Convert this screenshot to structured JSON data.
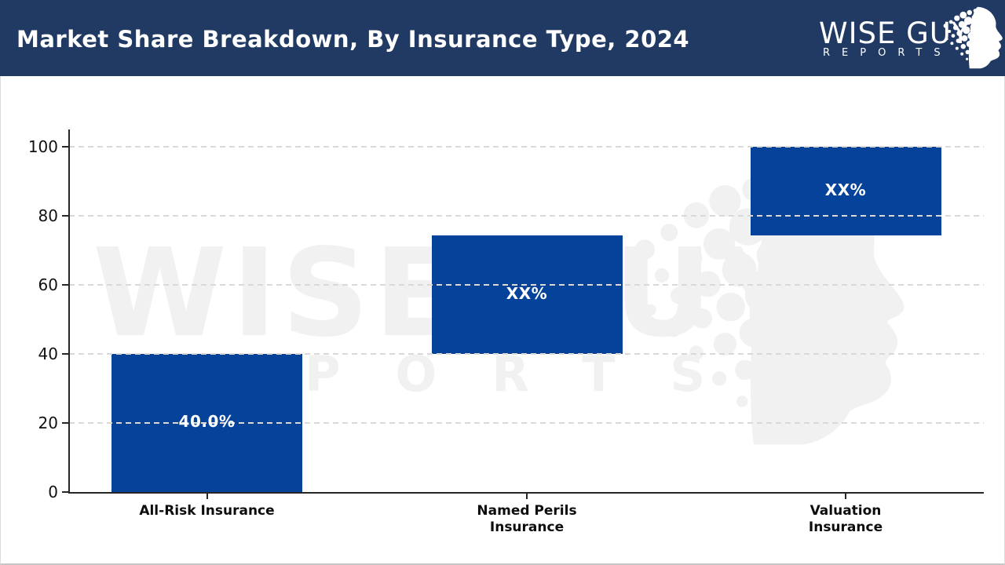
{
  "header": {
    "title": "Market Share Breakdown, By Insurance Type, 2024",
    "background_color": "#203a64",
    "logo": {
      "wordmark": "WISE GUY",
      "subtext": "REPORTS"
    }
  },
  "watermark": {
    "wordmark": "WISE GUY",
    "subtext": "REPORTS"
  },
  "chart_data": {
    "type": "bar",
    "subtype": "floating_stacked_percentage_bars",
    "title": "Market Share Breakdown, By Insurance Type, 2024",
    "categories": [
      "All-Risk Insurance",
      "Named Perils Insurance",
      "Valuation Insurance"
    ],
    "category_lines": [
      [
        "All-Risk Insurance"
      ],
      [
        "Named Perils",
        "Insurance"
      ],
      [
        "Valuation",
        "Insurance"
      ]
    ],
    "segments": [
      {
        "category": "All-Risk Insurance",
        "start": 0,
        "end": 40,
        "value": 40.0,
        "value_label": "40.0%"
      },
      {
        "category": "Named Perils Insurance",
        "start": 40,
        "end": 74.3,
        "value": null,
        "value_label": "XX%"
      },
      {
        "category": "Valuation Insurance",
        "start": 74.3,
        "end": 100,
        "value": null,
        "value_label": "XX%"
      }
    ],
    "y_ticks": [
      0,
      20,
      40,
      60,
      80,
      100
    ],
    "ylim": [
      0,
      105
    ],
    "xlabel": "",
    "ylabel": "",
    "legend": null,
    "grid": {
      "axis": "y",
      "style": "dashed",
      "color": "#d9d9d9",
      "on_top": true
    },
    "colors": {
      "bar": "#05429a",
      "bar_label": "#ffffff",
      "axis": "#262626",
      "tick_label": "#111111"
    }
  }
}
